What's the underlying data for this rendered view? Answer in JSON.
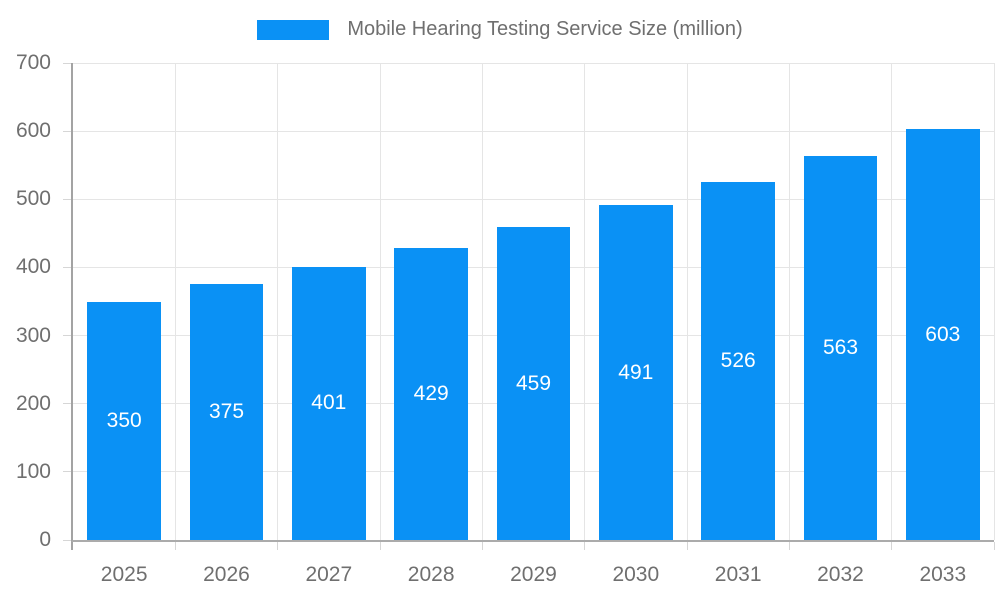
{
  "legend": {
    "label": "Mobile Hearing Testing Service Size (million)",
    "swatch_color": "#0A91F5"
  },
  "chart_data": {
    "type": "bar",
    "title": "Mobile Hearing Testing Service Size (million)",
    "categories": [
      "2025",
      "2026",
      "2027",
      "2028",
      "2029",
      "2030",
      "2031",
      "2032",
      "2033"
    ],
    "values": [
      350,
      375,
      401,
      429,
      459,
      491,
      526,
      563,
      603
    ],
    "xlabel": "",
    "ylabel": "",
    "ylim": [
      0,
      700
    ],
    "ytick_step": 100,
    "yticks": [
      0,
      100,
      200,
      300,
      400,
      500,
      600,
      700
    ],
    "grid": true,
    "legend_position": "top-center",
    "bar_color": "#0A91F5",
    "value_label_color": "#FFFFFF",
    "axis_text_color": "#6F6F6F",
    "grid_color": "#E5E5E5",
    "axis_line_color": "#A3A3A3"
  }
}
